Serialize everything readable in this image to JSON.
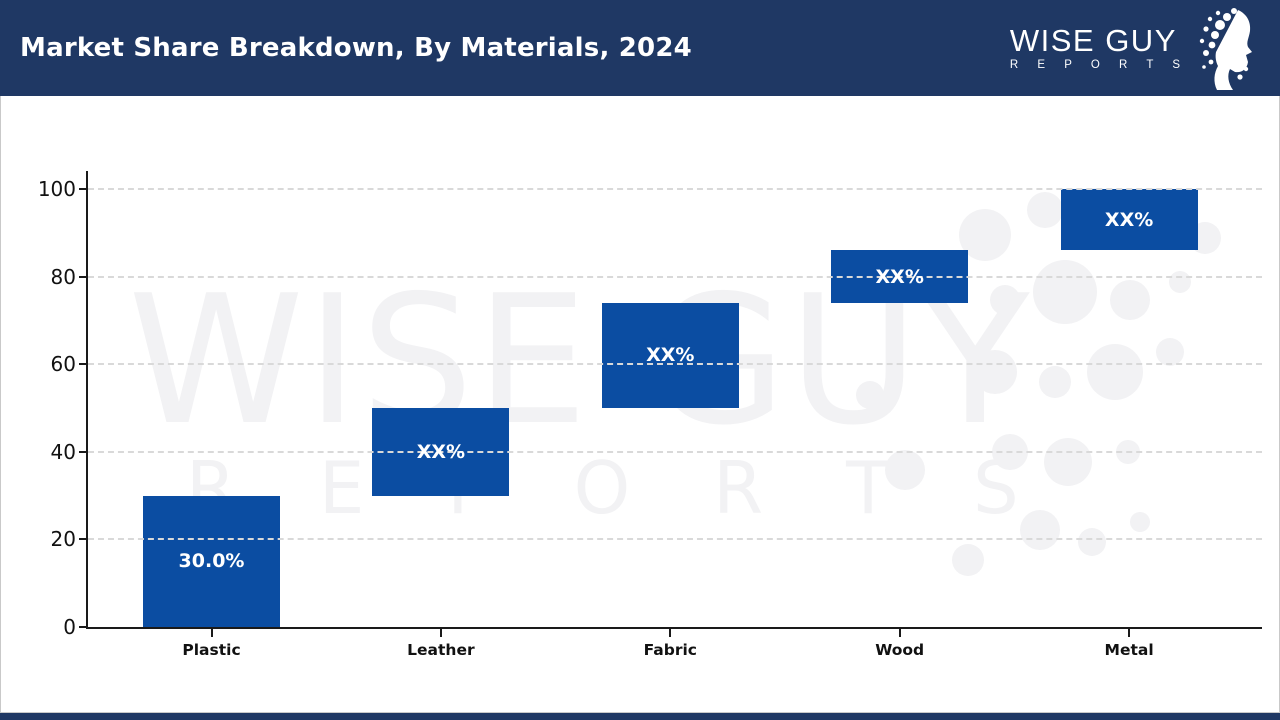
{
  "header": {
    "title": "Market Share Breakdown, By Materials, 2024",
    "logo": {
      "wordmark": "WISE GUY",
      "sub": "R E P O R T S"
    }
  },
  "watermark": {
    "wordmark": "WISE GUY",
    "sub": "R E P O R T S"
  },
  "chart_data": {
    "type": "bar",
    "variant": "waterfall",
    "title": "Market Share Breakdown, By Materials, 2024",
    "categories": [
      "Plastic",
      "Leather",
      "Fabric",
      "Wood",
      "Metal"
    ],
    "series": [
      {
        "name": "Market Share",
        "segments": [
          {
            "category": "Plastic",
            "start": 0,
            "end": 30,
            "label": "30.0%"
          },
          {
            "category": "Leather",
            "start": 30,
            "end": 50,
            "label": "XX%"
          },
          {
            "category": "Fabric",
            "start": 50,
            "end": 74,
            "label": "XX%"
          },
          {
            "category": "Wood",
            "start": 74,
            "end": 86,
            "label": "XX%"
          },
          {
            "category": "Metal",
            "start": 86,
            "end": 100,
            "label": "XX%"
          }
        ]
      }
    ],
    "y_ticks": [
      0,
      20,
      40,
      60,
      80,
      100
    ],
    "ylim": [
      0,
      104
    ],
    "xlabel": "",
    "ylabel": "",
    "grid": "horizontal-dashed",
    "legend": "none",
    "bar_color": "#0b4da2",
    "bar_label_color": "#ffffff"
  },
  "colors": {
    "header_bg": "#1f3864",
    "footer_bg": "#1f3864",
    "bar": "#0b4da2",
    "grid": "#d9d9d9",
    "axis": "#1a1a1a",
    "watermark": "#f2f2f4",
    "border": "#c9c9c9"
  }
}
